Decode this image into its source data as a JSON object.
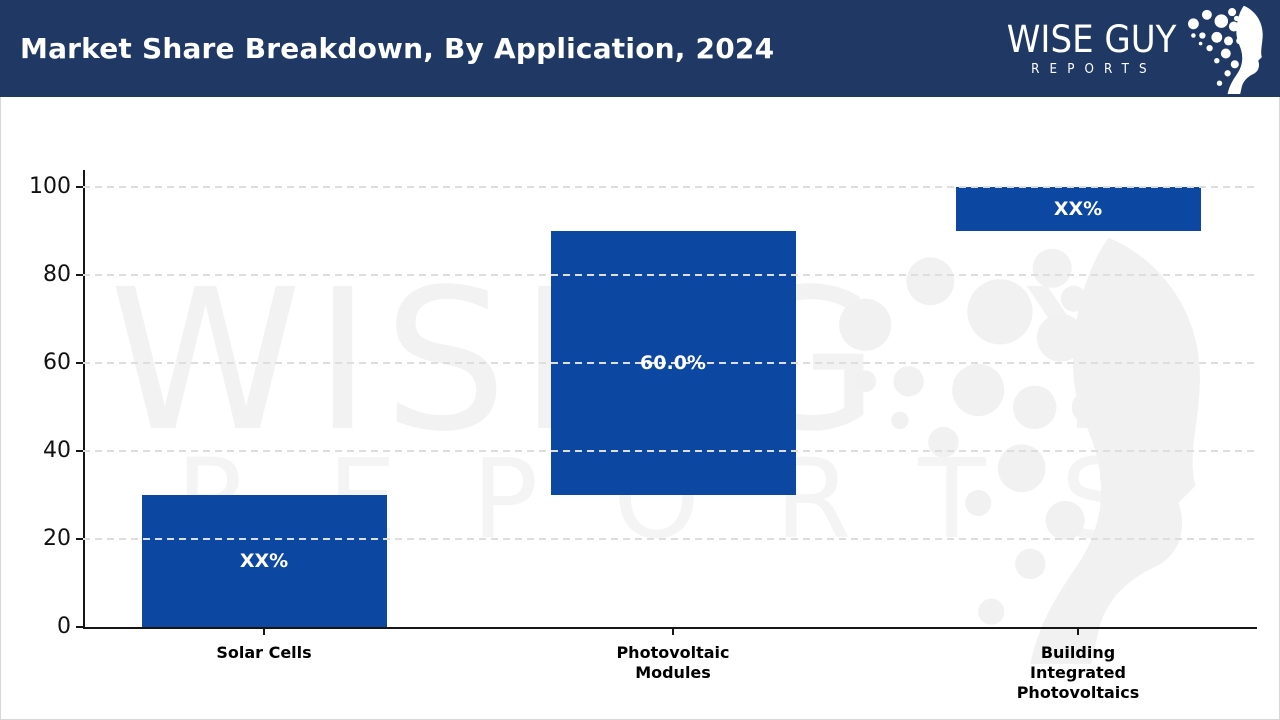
{
  "header": {
    "title": "Market Share Breakdown, By Application, 2024",
    "brand_line1": "WISE GUY",
    "brand_line2": "REPORTS"
  },
  "watermark": {
    "text_main": "WISE G",
    "text_tail": "Y",
    "text_sub": "REPORTS"
  },
  "chart_data": {
    "type": "bar",
    "variant": "floating-range-waterfall",
    "title": "Market Share Breakdown, By Application, 2024",
    "categories": [
      "Solar Cells",
      "Photovoltaic Modules",
      "Building Integrated Photovoltaics"
    ],
    "bars": [
      {
        "category": "Solar Cells",
        "start": 0,
        "end": 30,
        "label": "XX%"
      },
      {
        "category": "Photovoltaic Modules",
        "start": 30,
        "end": 90,
        "label": "60.0%"
      },
      {
        "category": "Building Integrated Photovoltaics",
        "start": 90,
        "end": 100,
        "label": "XX%"
      }
    ],
    "yticks": [
      0,
      20,
      40,
      60,
      80,
      100
    ],
    "ylim": [
      0,
      103.6
    ],
    "xlabel": "",
    "ylabel": "",
    "grid": "horizontal-dashed",
    "legend": "none"
  },
  "colors": {
    "header_navy": "#1f3864",
    "bar_blue": "#0c47a1",
    "grid_gray": "#dedede",
    "watermark_gray": "#f2f2f2",
    "axis_black": "#161616",
    "page_border_gray": "#d8d8d8"
  }
}
